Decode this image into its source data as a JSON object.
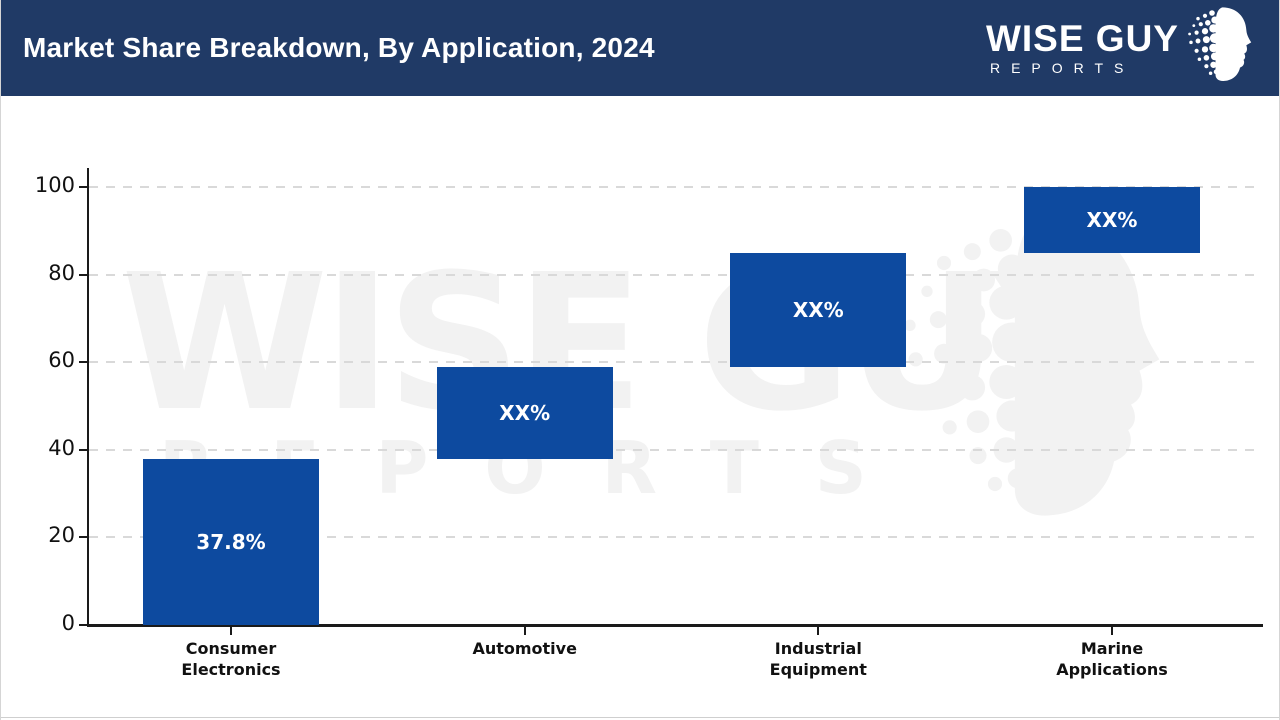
{
  "header": {
    "title": "Market Share Breakdown, By Application, 2024",
    "logo": {
      "line1": "WISE GUY",
      "line2": "REPORTS"
    }
  },
  "watermark": {
    "line1": "WISE GUY",
    "line2": "REPORTS"
  },
  "chart_data": {
    "type": "bar",
    "subtype": "waterfall (floating segment bars)",
    "title": "Market Share Breakdown, By Application, 2024",
    "categories": [
      "Consumer Electronics",
      "Automotive",
      "Industrial Equipment",
      "Marine Applications"
    ],
    "categories_lines": [
      [
        "Consumer",
        "Electronics"
      ],
      [
        "Automotive"
      ],
      [
        "Industrial",
        "Equipment"
      ],
      [
        "Marine",
        "Applications"
      ]
    ],
    "segments": [
      {
        "start": 0,
        "end": 37.8,
        "value": 37.8,
        "label": "37.8%"
      },
      {
        "start": 37.8,
        "end": 59,
        "value": 21.2,
        "label": "XX%"
      },
      {
        "start": 59,
        "end": 85,
        "value": 26,
        "label": "XX%"
      },
      {
        "start": 85,
        "end": 100,
        "value": 15,
        "label": "XX%"
      }
    ],
    "xlabel": "",
    "ylabel": "",
    "ylim": [
      0,
      100
    ],
    "yticks": [
      0,
      20,
      40,
      60,
      80,
      100
    ],
    "grid": "horizontal dashed",
    "legend": "none",
    "bar_color": "#0d4a9f",
    "bar_label_color": "#ffffff",
    "axis_color": "#1a1a1a",
    "gridline_color": "#d9d9d9",
    "header_color": "#203a66",
    "watermark_color": "#f2f2f2"
  }
}
